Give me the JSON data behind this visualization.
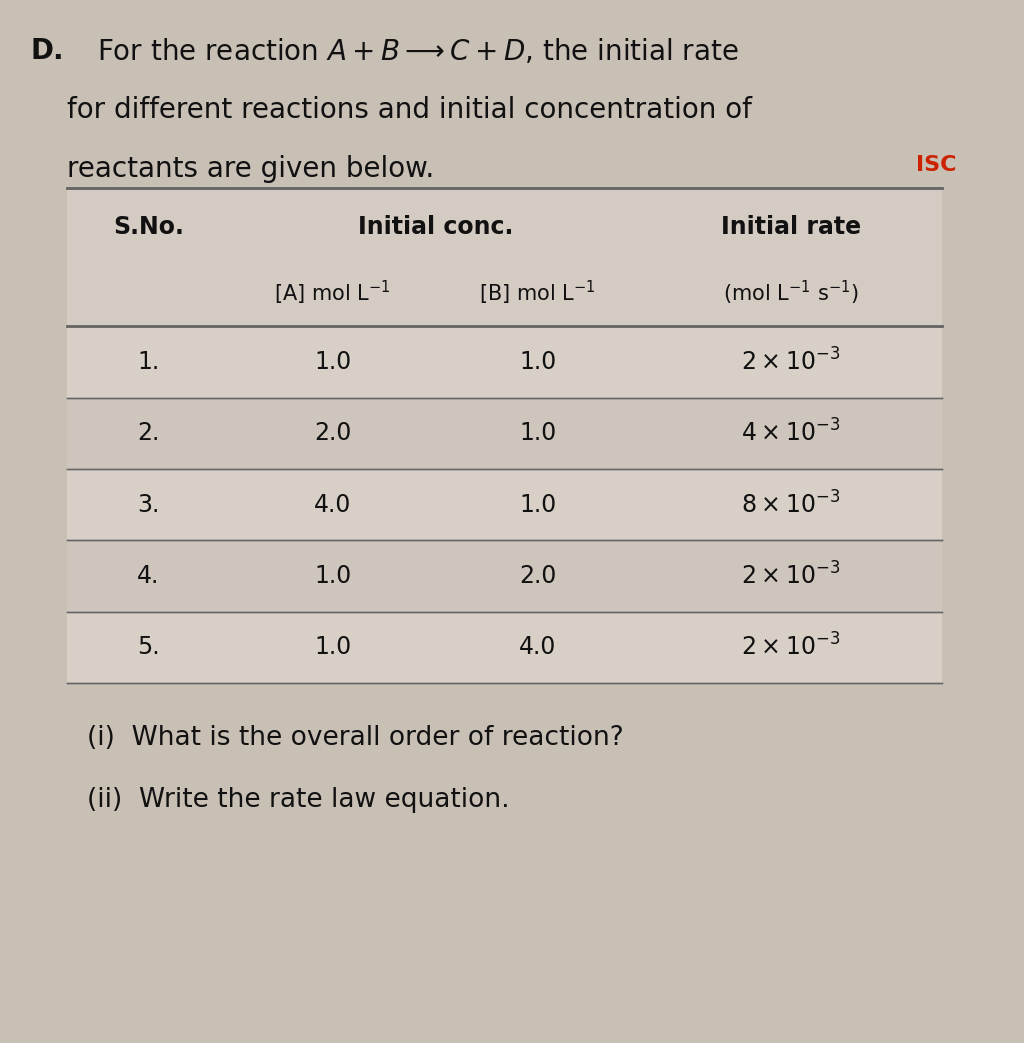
{
  "bg_color": "#c8bfb5",
  "table_bg": "#cec5bc",
  "text_color": "#111111",
  "line_color": "#666666",
  "isc_color": "#cc2200",
  "title_number": "D.",
  "title_line1": "For the reaction $A+B\\longrightarrow C+D$, the initial rate",
  "title_line2": "for different reactions and initial concentration of",
  "title_line3": "reactants are given below.",
  "isc_text": "ISC",
  "header1_sno": "S.No.",
  "header1_conc": "Initial conc.",
  "header1_rate": "Initial rate",
  "header2_A": "[A] mol L$^{-1}$",
  "header2_B": "[B] mol L$^{-1}$",
  "header2_rate": "(mol L$^{-1}$ s$^{-1}$)",
  "rows": [
    [
      "1.",
      "1.0",
      "1.0",
      "$2 \\times 10^{-3}$"
    ],
    [
      "2.",
      "2.0",
      "1.0",
      "$4 \\times 10^{-3}$"
    ],
    [
      "3.",
      "4.0",
      "1.0",
      "$8 \\times 10^{-3}$"
    ],
    [
      "4.",
      "1.0",
      "2.0",
      "$2 \\times 10^{-3}$"
    ],
    [
      "5.",
      "1.0",
      "4.0",
      "$2 \\times 10^{-3}$"
    ]
  ],
  "q1": "(i)  What is the overall order of reaction?",
  "q2": "(ii)  Write the rate law equation.",
  "font_title": 20,
  "font_header": 17,
  "font_subheader": 15,
  "font_data": 17,
  "font_question": 19
}
